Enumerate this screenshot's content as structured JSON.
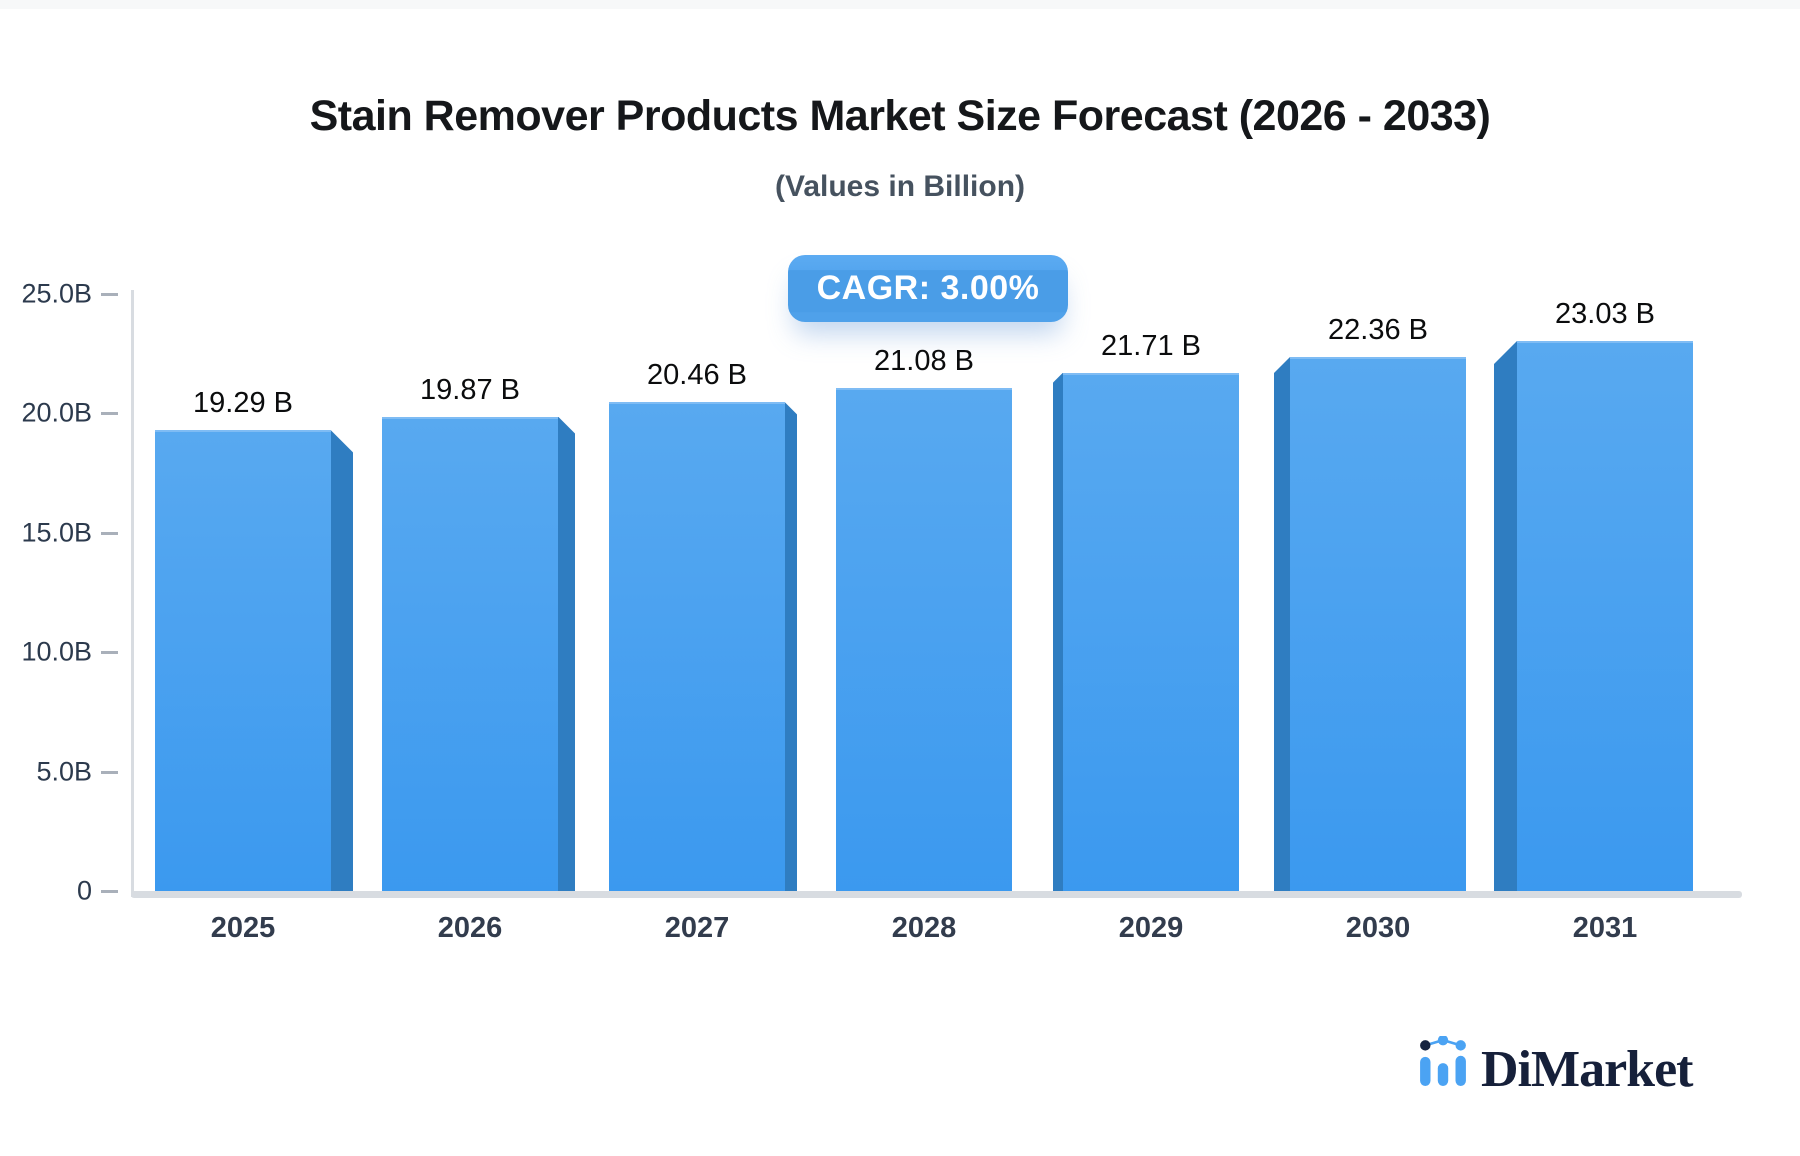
{
  "header": {
    "title": "Stain Remover Products Market Size Forecast (2026 - 2033)",
    "subtitle": "(Values in Billion)"
  },
  "badge": {
    "label": "CAGR: 3.00%"
  },
  "chart_data": {
    "type": "bar",
    "title": "Stain Remover Products Market Size Forecast (2026 - 2033)",
    "subtitle": "(Values in Billion)",
    "annotation": "CAGR: 3.00%",
    "categories": [
      "2025",
      "2026",
      "2027",
      "2028",
      "2029",
      "2030",
      "2031"
    ],
    "values": [
      19.29,
      19.87,
      20.46,
      21.08,
      21.71,
      22.36,
      23.03
    ],
    "value_labels": [
      "19.29 B",
      "19.87 B",
      "20.46 B",
      "21.08 B",
      "21.71 B",
      "22.36 B",
      "23.03 B"
    ],
    "yticks": [
      {
        "label": "25.0B",
        "value": 25
      },
      {
        "label": "20.0B",
        "value": 20
      },
      {
        "label": "15.0B",
        "value": 15
      },
      {
        "label": "10.0B",
        "value": 10
      },
      {
        "label": "5.0B",
        "value": 5
      },
      {
        "label": "0",
        "value": 0
      }
    ],
    "ylim": [
      0,
      25
    ],
    "xlabel": "",
    "ylabel": "",
    "grid": false,
    "legend": false,
    "colors": {
      "bar_top": "#58a9f0",
      "bar_bottom": "#3b99ef",
      "bar_side": "#2f7dc1",
      "axis": "#d8dce1",
      "badge_bg": "#4a9de7",
      "badge_text": "#ffffff"
    }
  },
  "logo": {
    "text": "DiMarket",
    "icon": "mini-bar-chart-icon"
  }
}
